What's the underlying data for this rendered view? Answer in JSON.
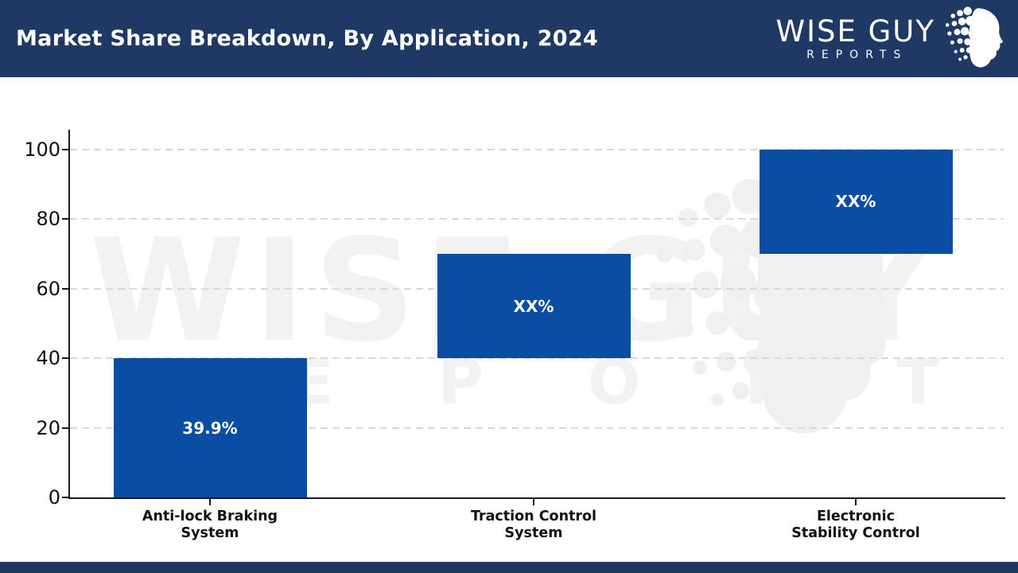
{
  "header": {
    "title": "Market Share Breakdown, By Application, 2024",
    "logo": {
      "name": "WISE GUY",
      "sub": "REPORTS"
    }
  },
  "watermark": {
    "line1": "WISE GUY",
    "line2": "R E P O R T S"
  },
  "chart_data": {
    "type": "bar",
    "subtype": "floating-segment-breakdown",
    "title": "Market Share Breakdown, By Application, 2024",
    "categories": [
      "Anti-lock Braking\nSystem",
      "Traction Control\nSystem",
      "Electronic\nStability Control"
    ],
    "segments": [
      {
        "category": "Anti-lock Braking System",
        "start": 0,
        "end": 39.9,
        "label": "39.9%"
      },
      {
        "category": "Traction Control System",
        "start": 39.9,
        "end": 70,
        "label": "XX%"
      },
      {
        "category": "Electronic Stability Control",
        "start": 70,
        "end": 100,
        "label": "XX%"
      }
    ],
    "yticks": [
      0,
      20,
      40,
      60,
      80,
      100
    ],
    "ylim": [
      0,
      105
    ],
    "xlabel": "",
    "ylabel": "",
    "grid": "horizontal-dashed",
    "legend": "none",
    "bar_color": "#0b4da2",
    "bar_label_color": "#ffffff"
  },
  "colors": {
    "band_bg": "#1f3864",
    "bar": "#0b4da2",
    "axis": "#1a1a1a",
    "grid": "#d9d9d9",
    "watermark": "#f2f2f2",
    "title_text": "#ffffff",
    "tick_text": "#111111"
  }
}
